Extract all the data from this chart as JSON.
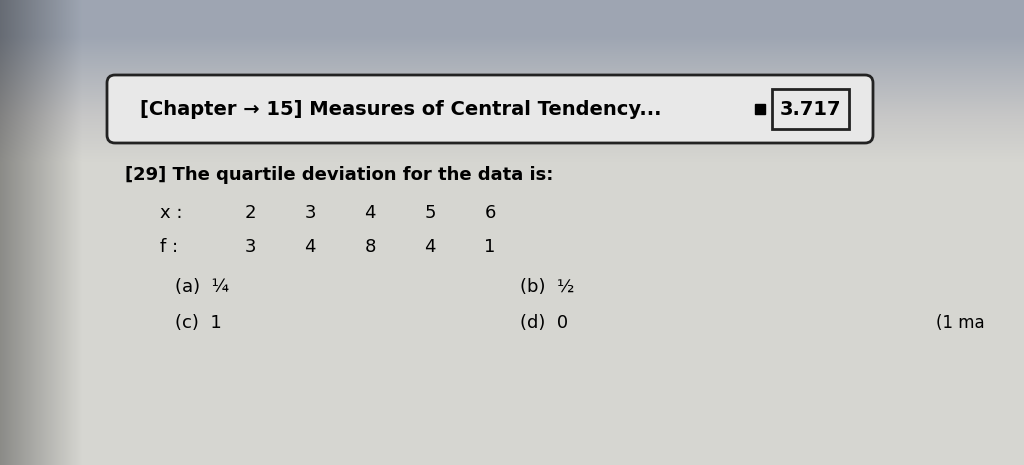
{
  "bg_top_color": "#b0b8c4",
  "bg_mid_color": "#d0d0d0",
  "bg_bottom_color": "#b8b8b8",
  "page_color": "#d8d8d8",
  "header_text": "[Chapter → 15] Measures of Central Tendency...",
  "header_box_text": "3.717",
  "question_number": "[29]",
  "question_text": " The quartile deviation for the data is:",
  "table_x_label": "x :",
  "table_f_label": "f :",
  "table_x_values": [
    "2",
    "3",
    "4",
    "5",
    "6"
  ],
  "table_f_values": [
    "3",
    "4",
    "8",
    "4",
    "1"
  ],
  "option_a": "(a)  ¼",
  "option_b": "(b)  ½",
  "option_c": "(c)  1",
  "option_d": "(d)  0",
  "mark_text": "(1 ma",
  "header_font_size": 14,
  "body_font_size": 13,
  "table_font_size": 13
}
